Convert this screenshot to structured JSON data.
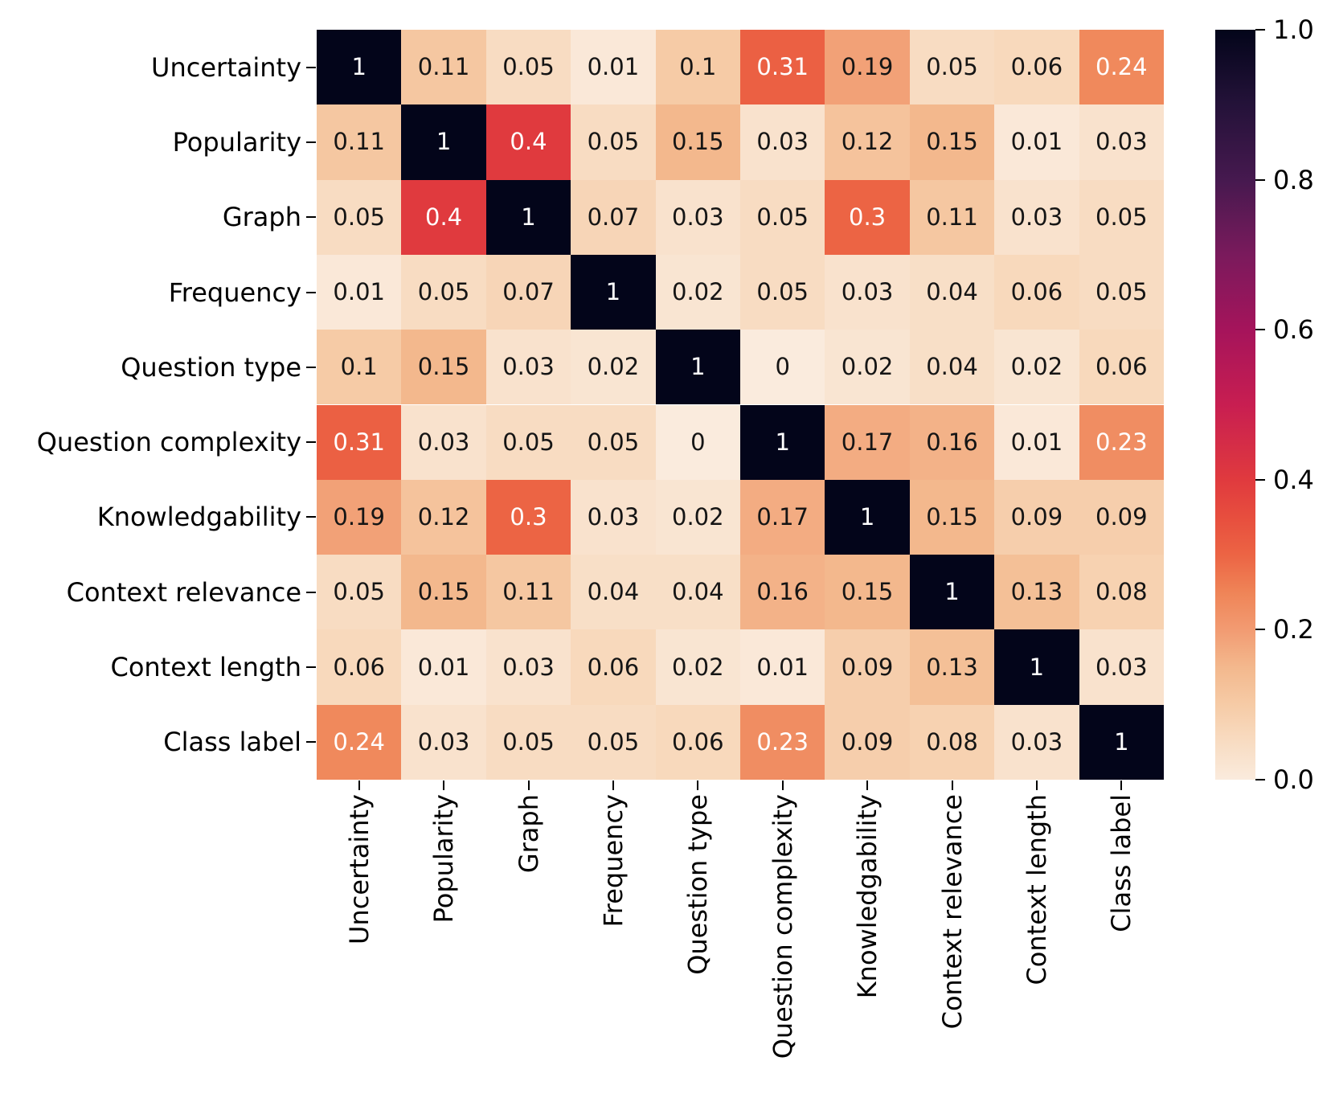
{
  "chart_data": {
    "type": "heatmap",
    "title": "",
    "categories": [
      "Uncertainty",
      "Popularity",
      "Graph",
      "Frequency",
      "Question type",
      "Question complexity",
      "Knowledgability",
      "Context relevance",
      "Context length",
      "Class label"
    ],
    "matrix": [
      [
        1,
        0.11,
        0.05,
        0.01,
        0.1,
        0.31,
        0.19,
        0.05,
        0.06,
        0.24
      ],
      [
        0.11,
        1,
        0.4,
        0.05,
        0.15,
        0.03,
        0.12,
        0.15,
        0.01,
        0.03
      ],
      [
        0.05,
        0.4,
        1,
        0.07,
        0.03,
        0.05,
        0.3,
        0.11,
        0.03,
        0.05
      ],
      [
        0.01,
        0.05,
        0.07,
        1,
        0.02,
        0.05,
        0.03,
        0.04,
        0.06,
        0.05
      ],
      [
        0.1,
        0.15,
        0.03,
        0.02,
        1,
        0,
        0.02,
        0.04,
        0.02,
        0.06
      ],
      [
        0.31,
        0.03,
        0.05,
        0.05,
        0,
        1,
        0.17,
        0.16,
        0.01,
        0.23
      ],
      [
        0.19,
        0.12,
        0.3,
        0.03,
        0.02,
        0.17,
        1,
        0.15,
        0.09,
        0.09
      ],
      [
        0.05,
        0.15,
        0.11,
        0.04,
        0.04,
        0.16,
        0.15,
        1,
        0.13,
        0.08
      ],
      [
        0.06,
        0.01,
        0.03,
        0.06,
        0.02,
        0.01,
        0.09,
        0.13,
        1,
        0.03
      ],
      [
        0.24,
        0.03,
        0.05,
        0.05,
        0.06,
        0.23,
        0.09,
        0.08,
        0.03,
        1
      ]
    ],
    "value_range": [
      0,
      1
    ],
    "grid": false,
    "legend_position": "right-colorbar",
    "colorbar": {
      "tick_labels": [
        "1.0",
        "0.8",
        "0.6",
        "0.4",
        "0.2",
        "0.0"
      ],
      "tick_values": [
        1.0,
        0.8,
        0.6,
        0.4,
        0.2,
        0.0
      ]
    },
    "colormap": {
      "name": "rocket_r",
      "anchors": [
        [
          0.0,
          "#FAEBDD"
        ],
        [
          0.05,
          "#F8DCC2"
        ],
        [
          0.1,
          "#F6CBA6"
        ],
        [
          0.15,
          "#F3B88D"
        ],
        [
          0.2,
          "#F29B72"
        ],
        [
          0.25,
          "#EF8457"
        ],
        [
          0.3,
          "#EC6444"
        ],
        [
          0.35,
          "#E74E3E"
        ],
        [
          0.4,
          "#E03A3E"
        ],
        [
          0.5,
          "#C81E51"
        ],
        [
          0.6,
          "#A5145B"
        ],
        [
          0.7,
          "#7A1A5C"
        ],
        [
          0.8,
          "#46194F"
        ],
        [
          0.9,
          "#241239"
        ],
        [
          1.0,
          "#03051A"
        ]
      ]
    },
    "annotation_colors": {
      "on_dark": "#FFFFFF",
      "on_light": "#151515"
    },
    "background": "#FFFFFF",
    "tick_color": "#000000"
  }
}
